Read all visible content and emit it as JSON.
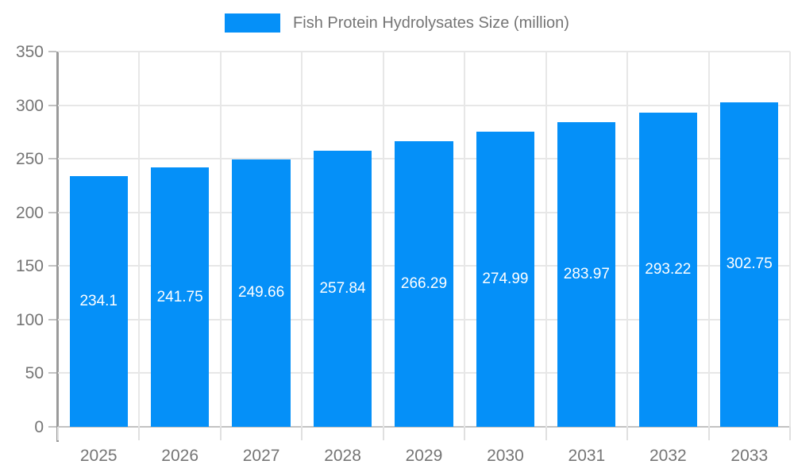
{
  "chart_data": {
    "type": "bar",
    "title": "Fish Protein Hydrolysates Size (million)",
    "legend": {
      "position": "top",
      "entries": [
        "Fish Protein Hydrolysates Size (million)"
      ]
    },
    "categories": [
      "2025",
      "2026",
      "2027",
      "2028",
      "2029",
      "2030",
      "2031",
      "2032",
      "2033"
    ],
    "values": [
      234.1,
      241.75,
      249.66,
      257.84,
      266.29,
      274.99,
      283.97,
      293.22,
      302.75
    ],
    "value_labels": [
      "234.1",
      "241.75",
      "249.66",
      "257.84",
      "266.29",
      "274.99",
      "283.97",
      "293.22",
      "302.75"
    ],
    "xlabel": "",
    "ylabel": "",
    "ylim": [
      0,
      350
    ],
    "yticks": [
      0,
      50,
      100,
      150,
      200,
      250,
      300,
      350
    ],
    "grid": true,
    "colors": {
      "bar": "#0590f8",
      "bar_label": "#ffffff",
      "axis_text": "#757575",
      "gridline": "#e7e7e7",
      "axis_line": "#9a9a9a"
    }
  }
}
